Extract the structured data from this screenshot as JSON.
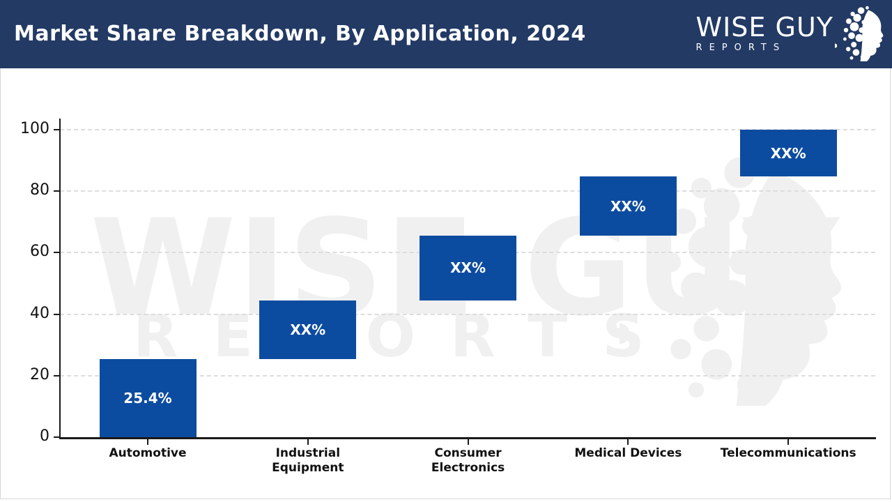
{
  "header": {
    "title": "Market Share Breakdown, By Application, 2024",
    "logo": {
      "wordmark": "WISE GUY",
      "subtext": "REPORTS"
    }
  },
  "watermark": {
    "line1": "WISE GUY",
    "line2": "REPORTS"
  },
  "chart_data": {
    "type": "bar",
    "subtype": "waterfall",
    "title": "Market Share Breakdown, By Application, 2024",
    "categories": [
      "Automotive",
      "Industrial\nEquipment",
      "Consumer\nElectronics",
      "Medical Devices",
      "Telecommunications"
    ],
    "bars": [
      {
        "category": "Automotive",
        "start": 0,
        "end": 25.4,
        "label": "25.4%"
      },
      {
        "category": "Industrial Equipment",
        "start": 25.4,
        "end": 44.5,
        "label": "XX%"
      },
      {
        "category": "Consumer Electronics",
        "start": 44.5,
        "end": 65.5,
        "label": "XX%"
      },
      {
        "category": "Medical Devices",
        "start": 65.5,
        "end": 84.8,
        "label": "XX%"
      },
      {
        "category": "Telecommunications",
        "start": 84.8,
        "end": 100,
        "label": "XX%"
      }
    ],
    "ylim": [
      0,
      100
    ],
    "yticks": [
      0,
      20,
      40,
      60,
      80,
      100
    ],
    "grid": {
      "axis": "y",
      "style": "dashed"
    },
    "legend": "none",
    "colors": {
      "bar": "#0C4CA0",
      "bar_label": "#FFFFFF",
      "grid": "#DDDDDD",
      "axis": "#1A1A1A",
      "tick_text": "#111111"
    }
  },
  "colors": {
    "header_bg": "#223A64",
    "canvas_bg": "#FFFFFF",
    "watermark": "#F0F0F0",
    "title_text": "#FFFFFF"
  }
}
